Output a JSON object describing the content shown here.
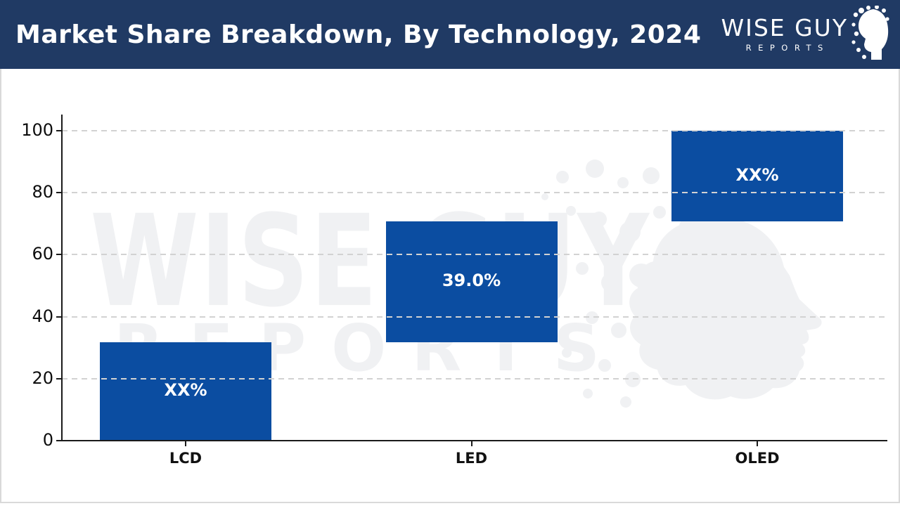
{
  "header": {
    "title": "Market Share Breakdown, By Technology, 2024",
    "bg_color": "#203a64",
    "logo": {
      "line1": "WISE GUY",
      "line2": "REPORTS"
    }
  },
  "watermark": {
    "line1": "WISE GUY",
    "line2": "REPORTS"
  },
  "chart_data": {
    "type": "bar",
    "subtype": "floating-segment-waterfall",
    "title": "Market Share Breakdown, By Technology, 2024",
    "xlabel": "",
    "ylabel": "",
    "categories": [
      "LCD",
      "LED",
      "OLED"
    ],
    "segments": [
      {
        "category": "LCD",
        "start": 0,
        "end": 31.7,
        "label": "XX%"
      },
      {
        "category": "LED",
        "start": 31.7,
        "end": 70.7,
        "label": "39.0%"
      },
      {
        "category": "OLED",
        "start": 70.7,
        "end": 100,
        "label": "XX%"
      }
    ],
    "yticks": [
      0,
      20,
      40,
      60,
      80,
      100
    ],
    "ylim": [
      0,
      105
    ],
    "grid": "horizontal-dashed-over-bars",
    "legend": "none",
    "bar_color": "#0b4da1",
    "bar_label_color": "#ffffff",
    "gridline_color": "#d2d2d2",
    "axis_color": "#1a1a1a"
  }
}
